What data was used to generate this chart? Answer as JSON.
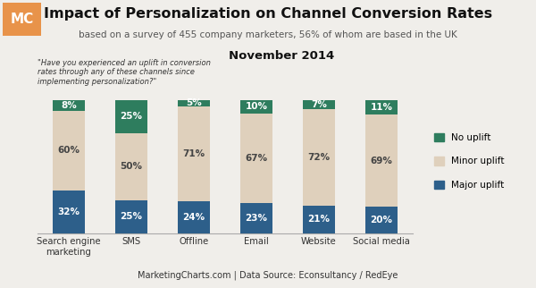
{
  "title": "Impact of Personalization on Channel Conversion Rates",
  "subtitle": "based on a survey of 455 company marketers, 56% of whom are based in the UK",
  "date_label": "November 2014",
  "question": "\"Have you experienced an uplift in conversion\nrates through any of these channels since\nimplementing personalization?\"",
  "footer": "MarketingCharts.com | Data Source: Econsultancy / RedEye",
  "categories": [
    "Search engine\nmarketing",
    "SMS",
    "Offline",
    "Email",
    "Website",
    "Social media"
  ],
  "major_uplift": [
    32,
    25,
    24,
    23,
    21,
    20
  ],
  "minor_uplift": [
    60,
    50,
    71,
    67,
    72,
    69
  ],
  "no_uplift": [
    8,
    25,
    5,
    10,
    7,
    11
  ],
  "color_major": "#2d5f8a",
  "color_minor": "#dfd0bc",
  "color_no": "#2e7d5e",
  "bar_width": 0.52,
  "bg_color": "#f0eeea",
  "footer_bg": "#d0ceca",
  "title_fontsize": 11.5,
  "subtitle_fontsize": 7.5,
  "legend_labels": [
    "No uplift",
    "Minor uplift",
    "Major uplift"
  ],
  "mc_box_color": "#e8934a",
  "mc_text": "MC"
}
